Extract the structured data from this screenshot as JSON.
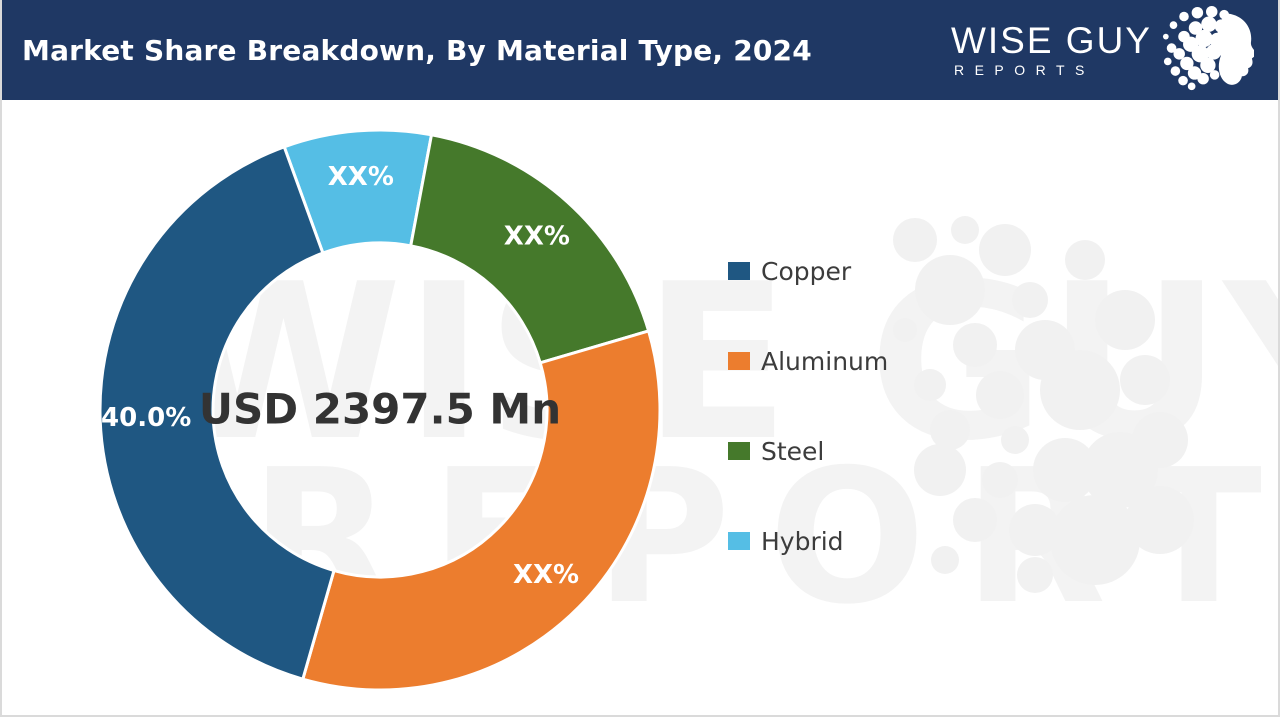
{
  "header": {
    "title": "Market Share Breakdown, By Material Type, 2024",
    "logo": {
      "line1": "WISE GUY",
      "line2": "REPORTS"
    }
  },
  "watermark": {
    "line1": "WISE GUY",
    "line2": "REPORTS"
  },
  "chart_data": {
    "type": "pie",
    "subtype": "donut",
    "title": "Market Share Breakdown, By Material Type, 2024",
    "center_label": "USD 2397.5 Mn",
    "units": "USD Mn",
    "legend_position": "right",
    "start_angle_deg": -20,
    "direction": "clockwise",
    "segments": [
      {
        "label": "Copper",
        "display_value": "40.0%",
        "value_pct_est": 40,
        "color": "#1F5782"
      },
      {
        "label": "Aluminum",
        "display_value": "XX%",
        "value_pct_est": 34,
        "color": "#EC7D2E"
      },
      {
        "label": "Steel",
        "display_value": "XX%",
        "value_pct_est": 17.5,
        "color": "#45792B"
      },
      {
        "label": "Hybrid",
        "display_value": "XX%",
        "value_pct_est": 8.5,
        "color": "#55BEE5"
      }
    ]
  },
  "colors": {
    "header_bg": "#1F3864",
    "center_text": "#333333",
    "legend_text": "#3C3C3C",
    "watermark": "#F3F3F3",
    "border": "#D9D9D9"
  }
}
